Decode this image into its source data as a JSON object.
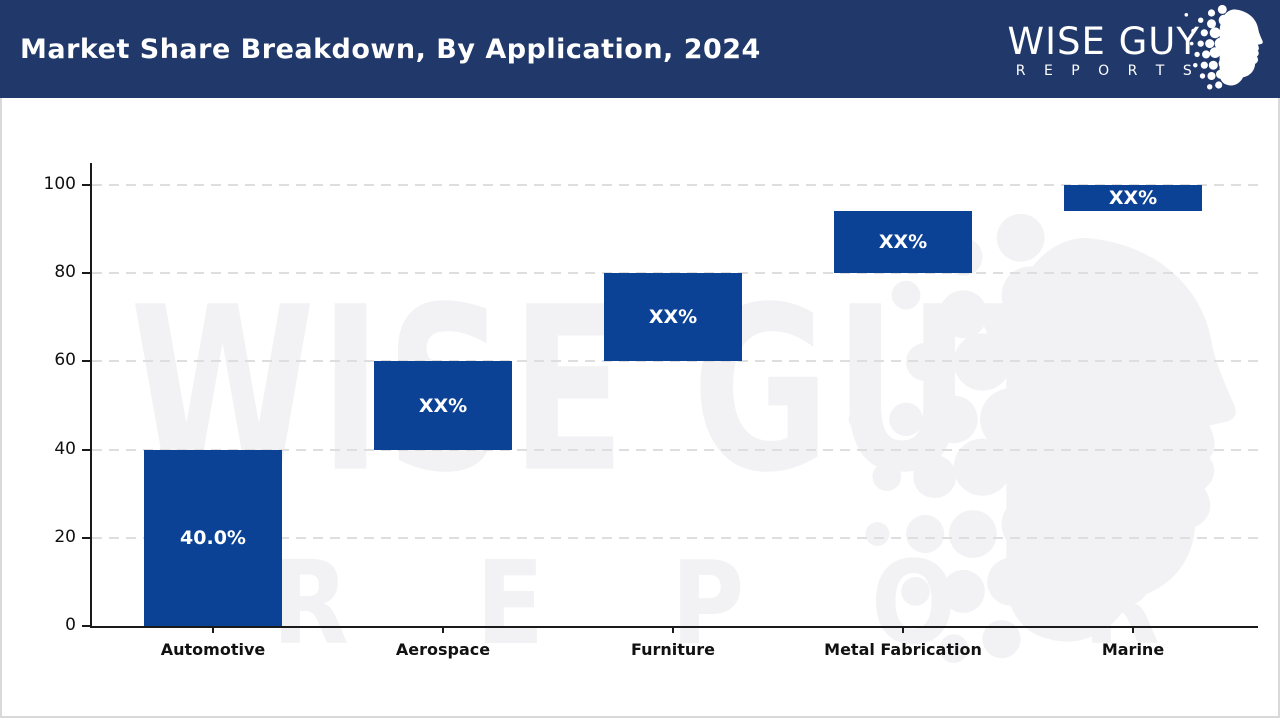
{
  "header": {
    "title": "Market Share Breakdown, By Application, 2024",
    "logo": {
      "line1": "WISE GUY",
      "line2": "R E P O R T S"
    }
  },
  "watermark": {
    "line1": "WISE GUY",
    "line2": "R E P O R T S"
  },
  "chart_data": {
    "type": "bar",
    "subtype": "waterfall",
    "title": "Market Share Breakdown, By Application, 2024",
    "xlabel": "",
    "ylabel": "",
    "ylim": [
      0,
      100
    ],
    "yticks": [
      0,
      20,
      40,
      60,
      80,
      100
    ],
    "grid": "horizontal-dashed",
    "categories": [
      "Automotive",
      "Aerospace",
      "Furniture",
      "Metal Fabrication",
      "Marine"
    ],
    "bars": [
      {
        "category": "Automotive",
        "start": 0,
        "end": 40,
        "value": 40,
        "label": "40.0%"
      },
      {
        "category": "Aerospace",
        "start": 40,
        "end": 60,
        "value": 20,
        "label": "XX%"
      },
      {
        "category": "Furniture",
        "start": 60,
        "end": 80,
        "value": 20,
        "label": "XX%"
      },
      {
        "category": "Metal Fabrication",
        "start": 80,
        "end": 94,
        "value": 14,
        "label": "XX%"
      },
      {
        "category": "Marine",
        "start": 94,
        "end": 100,
        "value": 6,
        "label": "XX%"
      }
    ],
    "colors": {
      "bar": "#0b4295",
      "bar_label": "#ffffff",
      "header_background": "#20386a",
      "gridline": "#dedede",
      "axis": "#1a1a1a",
      "watermark": "#f2f2f4",
      "frame_border": "#d9d9d9"
    }
  }
}
